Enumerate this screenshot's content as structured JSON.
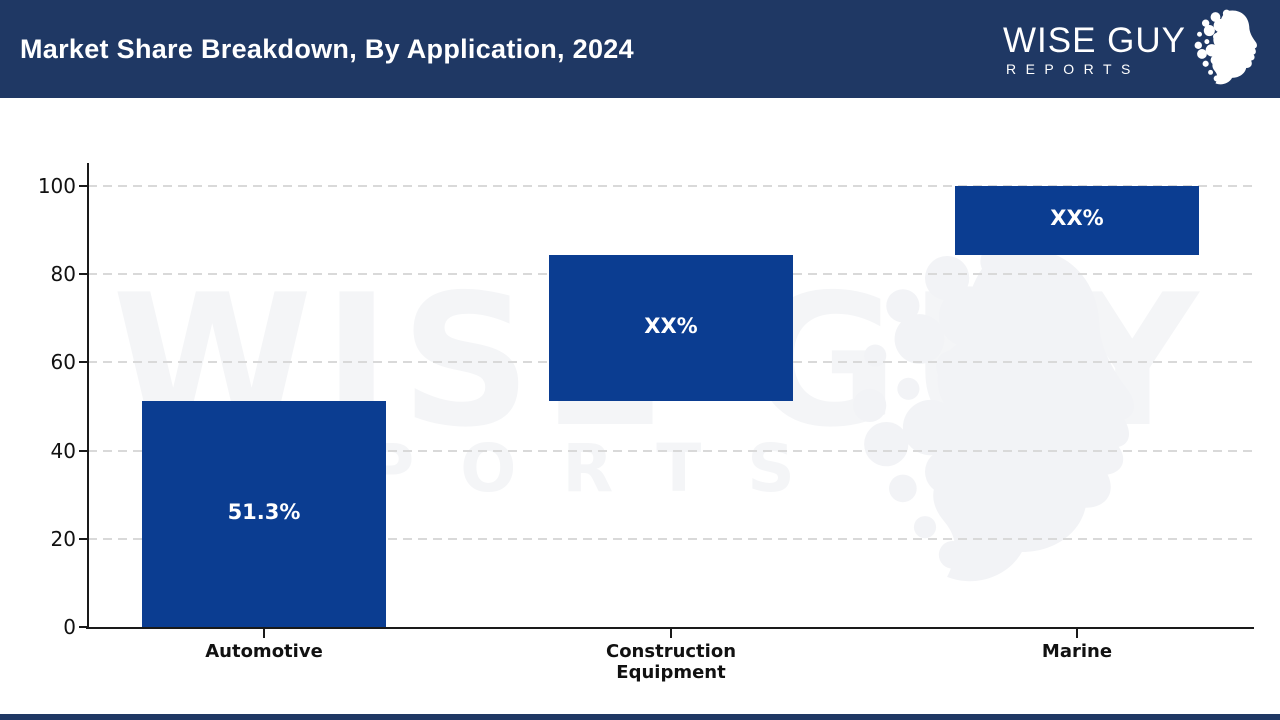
{
  "header": {
    "title": "Market Share Breakdown, By Application, 2024",
    "logo": {
      "wordmark": "WISE GUY",
      "sub": "REPORTS"
    }
  },
  "watermark": {
    "wordmark": "WISE GUY",
    "sub": "REPORTS"
  },
  "chart_data": {
    "type": "bar",
    "subtype": "waterfall",
    "title": "Market Share Breakdown, By Application, 2024",
    "categories": [
      "Automotive",
      "Construction Equipment",
      "Marine"
    ],
    "category_display": [
      "Automotive",
      "Construction\nEquipment",
      "Marine"
    ],
    "segments": [
      {
        "category": "Automotive",
        "start": 0,
        "end": 51.3,
        "label": "51.3%"
      },
      {
        "category": "Construction Equipment",
        "start": 51.3,
        "end": 84.4,
        "label": "XX%"
      },
      {
        "category": "Marine",
        "start": 84.4,
        "end": 100,
        "label": "XX%"
      }
    ],
    "yticks": [
      0,
      20,
      40,
      60,
      80,
      100
    ],
    "ylim": [
      0,
      105
    ],
    "xlabel": "",
    "ylabel": "",
    "legend": null,
    "grid": "horizontal-dashed",
    "bar_color": "#0b3d91",
    "bar_label_color": "#ffffff",
    "axis_color": "#1a1a1a",
    "grid_color": "#d9d9d9"
  },
  "colors": {
    "header_bg": "#1f3864",
    "bar": "#0b3d91",
    "watermark": "#f2f3f6"
  }
}
